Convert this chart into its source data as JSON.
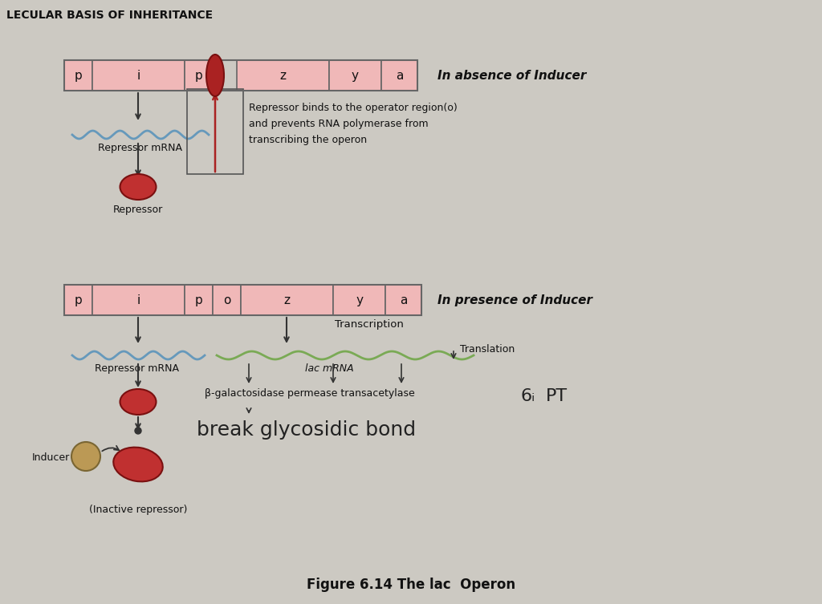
{
  "bg_color": "#ccc9c2",
  "title": "LECULAR BASIS OF INHERITANCE",
  "figure_caption": "Figure 6.14 The lac  Operon",
  "annotation_top_right": "In absence of Inducer",
  "annotation_bot_right": "In presence of Inducer",
  "repressor_mrna_text_top": "Repressor mRNA",
  "repressor_mrna_text_bot": "Repressor mRNA",
  "lac_mrna_text": "lac mRNA",
  "transcription_text": "Transcription",
  "translation_text": "Translation",
  "repressor_text_top": "Repressor",
  "inducer_text": "Inducer",
  "inactive_text": "(Inactive repressor)",
  "repressor_text2": "Repressor binds to the operator region(o)\nand prevents RNA polymerase from\ntranscribing the operon",
  "enzymes_text": "β-galactosidase permease transacetylase",
  "handwritten1": "6ᵢ",
  "handwritten2": "PT",
  "handwritten3": "break glycosidic bond",
  "box_fc": "#f0b8b8",
  "box_ec": "#666666",
  "op_color": "#aa2222",
  "rep_color": "#c03030",
  "rep_edge": "#7a1010",
  "wave_blue": "#6699bb",
  "wave_green": "#7aaa55",
  "arrow_color": "#333333",
  "text_color": "#111111"
}
